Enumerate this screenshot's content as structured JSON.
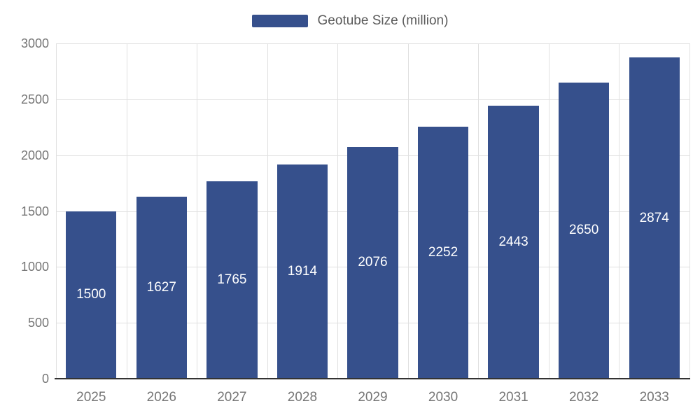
{
  "chart_data": {
    "type": "bar",
    "title": "",
    "legend_label": "Geotube Size (million)",
    "legend_position": "top-center",
    "categories": [
      "2025",
      "2026",
      "2027",
      "2028",
      "2029",
      "2030",
      "2031",
      "2032",
      "2033"
    ],
    "values": [
      1500,
      1627,
      1765,
      1914,
      2076,
      2252,
      2443,
      2650,
      2874
    ],
    "xlabel": "",
    "ylabel": "",
    "ylim": [
      0,
      3000
    ],
    "yticks": [
      0,
      500,
      1000,
      1500,
      2000,
      2500,
      3000
    ],
    "grid": true,
    "value_labels_inside_bars": true,
    "colors": {
      "bar": "#36508C",
      "bar_value_label": "#ffffff",
      "axis_tick_label": "#757575",
      "legend_text": "#5b5b5b",
      "gridline": "#e0e0e0",
      "axis_line": "#333333",
      "background": "#ffffff"
    }
  }
}
